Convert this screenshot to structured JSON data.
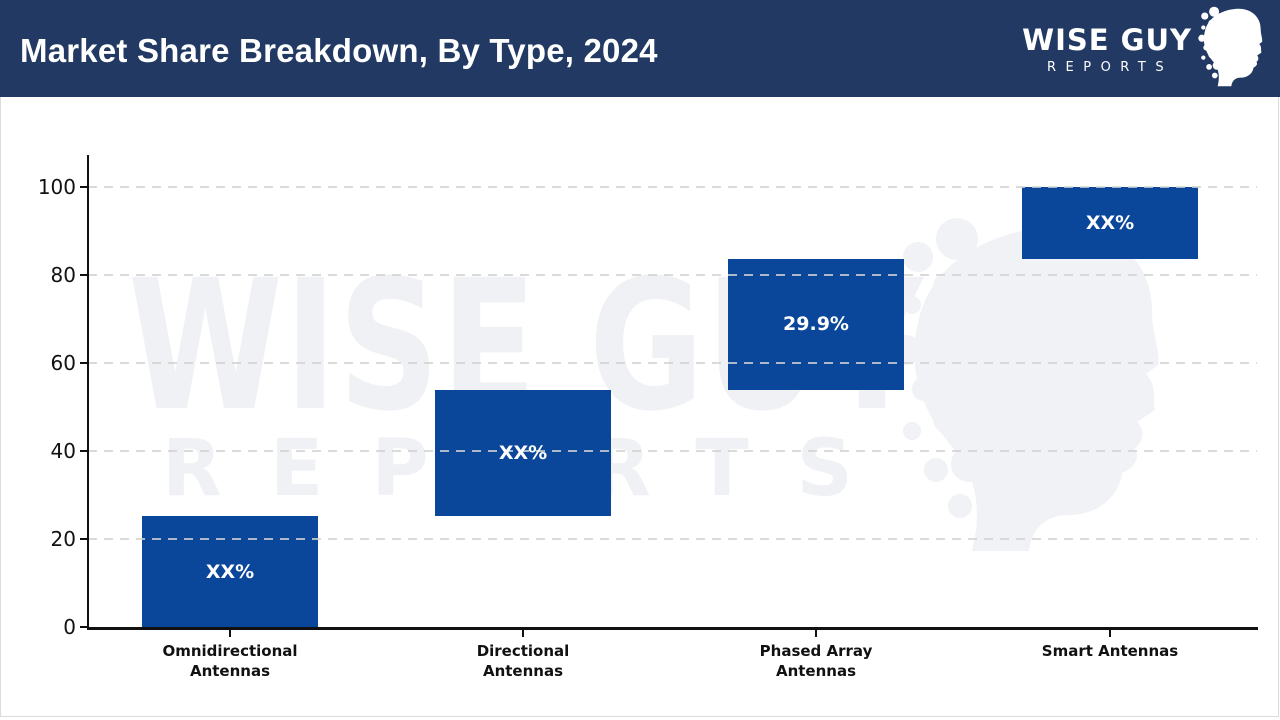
{
  "header": {
    "title": "Market Share Breakdown, By Type, 2024",
    "bg_color": "#213963",
    "logo": {
      "line1": "WISE GUY",
      "line2": "REPORTS"
    }
  },
  "watermark": {
    "line1": "WISE GUY",
    "line2": "REPORTS"
  },
  "chart_data": {
    "type": "bar",
    "subtype": "waterfall",
    "title": "Market Share Breakdown, By Type, 2024",
    "xlabel": "",
    "ylabel": "",
    "ylim": [
      0,
      107
    ],
    "y_ticks": [
      0,
      20,
      40,
      60,
      80,
      100
    ],
    "grid": true,
    "bar_color": "#0a4699",
    "categories": [
      "Omnidirectional Antennas",
      "Directional Antennas",
      "Phased Array Antennas",
      "Smart Antennas"
    ],
    "bars": [
      {
        "category": "Omnidirectional Antennas",
        "label_lines": [
          "Omnidirectional",
          "Antennas"
        ],
        "start": 0,
        "end": 25.2,
        "value": 25.2,
        "value_label": "XX%"
      },
      {
        "category": "Directional Antennas",
        "label_lines": [
          "Directional",
          "Antennas"
        ],
        "start": 25.2,
        "end": 53.8,
        "value": 28.6,
        "value_label": "XX%"
      },
      {
        "category": "Phased Array Antennas",
        "label_lines": [
          "Phased Array",
          "Antennas"
        ],
        "start": 53.8,
        "end": 83.7,
        "value": 29.9,
        "value_label": "29.9%"
      },
      {
        "category": "Smart Antennas",
        "label_lines": [
          "Smart Antennas"
        ],
        "start": 83.7,
        "end": 100,
        "value": 16.3,
        "value_label": "XX%"
      }
    ]
  }
}
